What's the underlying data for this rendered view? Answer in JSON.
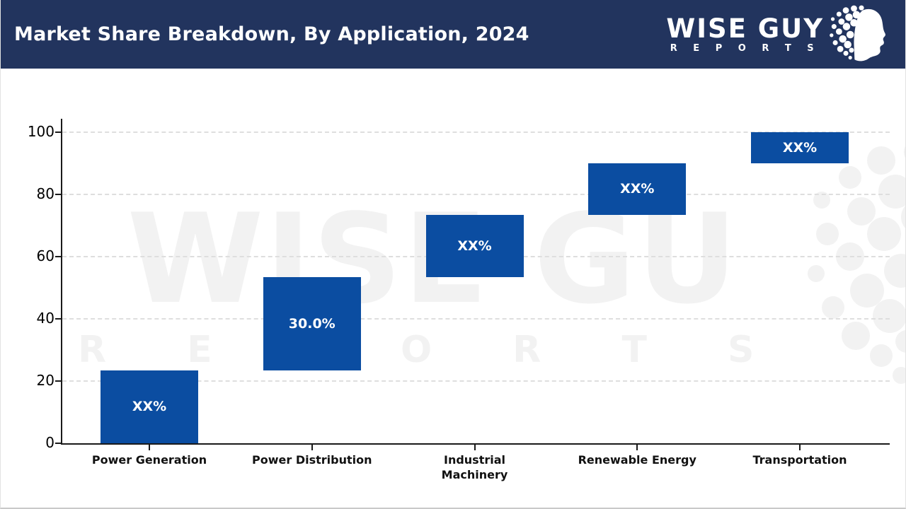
{
  "header": {
    "title": "Market Share Breakdown, By Application, 2024",
    "bg_color": "#22345e",
    "logo": {
      "line1": "WISE GUY",
      "line2": "R E P O R T S"
    }
  },
  "watermark": {
    "line1": "WISE GU",
    "line2": "R E P O R T S"
  },
  "chart_data": {
    "type": "bar",
    "subtype": "waterfall",
    "title": "Market Share Breakdown, By Application, 2024",
    "categories": [
      "Power Generation",
      "Power Distribution",
      "Industrial\nMachinery",
      "Renewable Energy",
      "Transportation"
    ],
    "segments": [
      {
        "category": "Power Generation",
        "start": 0,
        "end": 23.5,
        "label": "XX%"
      },
      {
        "category": "Power Distribution",
        "start": 23.5,
        "end": 53.5,
        "label": "30.0%"
      },
      {
        "category": "Industrial\nMachinery",
        "start": 53.5,
        "end": 73.5,
        "label": "XX%"
      },
      {
        "category": "Renewable Energy",
        "start": 73.5,
        "end": 90.0,
        "label": "XX%"
      },
      {
        "category": "Transportation",
        "start": 90.0,
        "end": 100.0,
        "label": "XX%"
      }
    ],
    "yticks": [
      0,
      20,
      40,
      60,
      80,
      100
    ],
    "ylim": [
      0,
      104
    ],
    "xlabel": "",
    "ylabel": "",
    "grid": "horizontal-dashed",
    "legend": "none",
    "bar_color": "#0b4da1",
    "bar_label_color": "#ffffff",
    "axis_color": "#1a1a1a",
    "grid_color": "#dedede"
  }
}
